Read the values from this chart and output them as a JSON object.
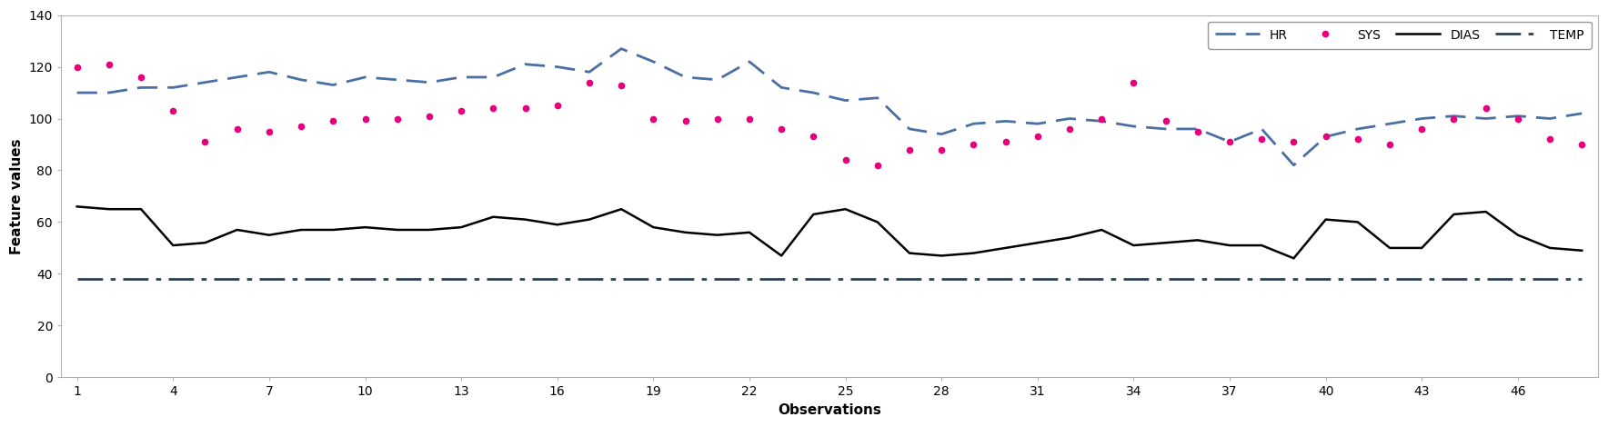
{
  "xlabel": "Observations",
  "ylabel": "Feature values",
  "xlim_min": 1,
  "xlim_max": 48,
  "ylim_min": 0,
  "ylim_max": 140,
  "yticks": [
    0,
    20,
    40,
    60,
    80,
    100,
    120,
    140
  ],
  "xticks": [
    1,
    4,
    7,
    10,
    13,
    16,
    19,
    22,
    25,
    28,
    31,
    34,
    37,
    40,
    43,
    46
  ],
  "HR": [
    110,
    110,
    112,
    112,
    114,
    116,
    118,
    115,
    113,
    116,
    115,
    114,
    116,
    116,
    121,
    120,
    118,
    127,
    122,
    116,
    115,
    122,
    112,
    110,
    107,
    108,
    96,
    94,
    98,
    99,
    98,
    100,
    99,
    97,
    96,
    96,
    91,
    96,
    82,
    93,
    96,
    98,
    100,
    101,
    100,
    101,
    100,
    102
  ],
  "SYS": [
    120,
    121,
    116,
    103,
    91,
    96,
    95,
    97,
    99,
    100,
    100,
    101,
    103,
    104,
    104,
    105,
    114,
    113,
    100,
    99,
    100,
    100,
    96,
    93,
    84,
    82,
    88,
    88,
    90,
    91,
    93,
    96,
    100,
    114,
    99,
    95,
    91,
    92,
    91,
    93,
    92,
    90,
    96,
    100,
    104,
    100,
    92,
    90
  ],
  "DIAS": [
    66,
    65,
    65,
    51,
    52,
    57,
    55,
    57,
    57,
    58,
    57,
    57,
    58,
    62,
    61,
    59,
    61,
    65,
    58,
    56,
    55,
    56,
    47,
    63,
    65,
    60,
    48,
    47,
    48,
    50,
    52,
    54,
    57,
    51,
    52,
    53,
    51,
    51,
    46,
    61,
    60,
    50,
    50,
    63,
    64,
    55,
    50,
    49
  ],
  "TEMP": [
    38,
    38,
    38,
    38,
    38,
    38,
    38,
    38,
    38,
    38,
    38,
    38,
    38,
    38,
    38,
    38,
    38,
    38,
    38,
    38,
    38,
    38,
    38,
    38,
    38,
    38,
    38,
    38,
    38,
    38,
    38,
    38,
    38,
    38,
    38,
    38,
    38,
    38,
    38,
    38,
    38,
    38,
    38,
    38,
    38,
    38,
    38,
    38
  ],
  "HR_color": "#4a6fa5",
  "SYS_color": "#e6007e",
  "DIAS_color": "#000000",
  "TEMP_color": "#2e4053",
  "bg_color": "#ffffff",
  "spine_color": "#b0b0b0",
  "tick_label_size": 10,
  "xlabel_size": 11,
  "ylabel_size": 11,
  "legend_fontsize": 10
}
